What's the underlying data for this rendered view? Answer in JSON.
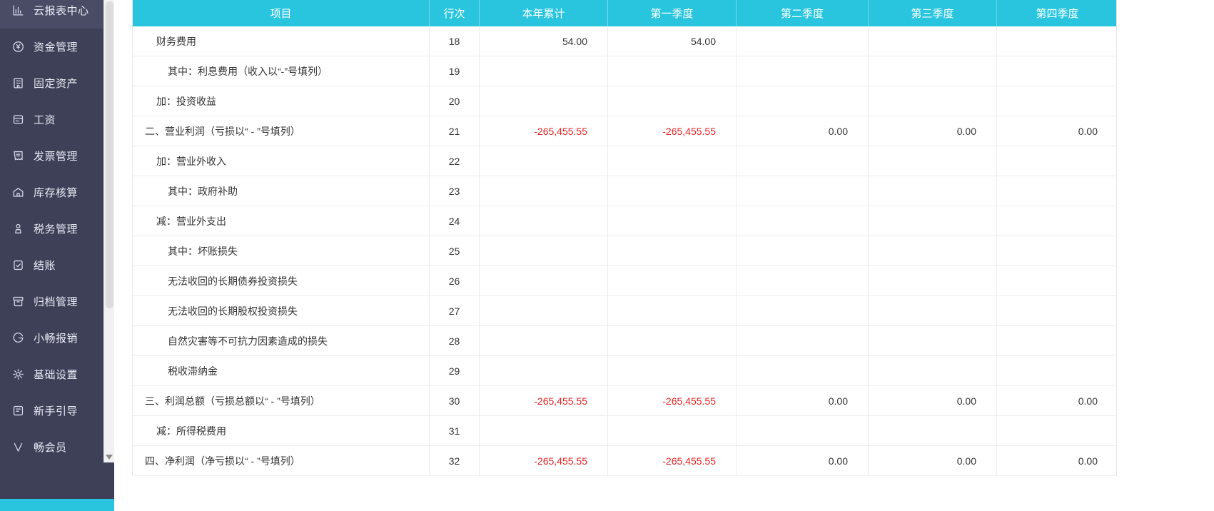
{
  "colors": {
    "accent": "#29c5df",
    "sidebar_bg": "#3e4058",
    "negative_value": "#e42222"
  },
  "sidebar": {
    "items": [
      {
        "label": "云报表中心",
        "icon": "cloud-report-icon"
      },
      {
        "label": "资金管理",
        "icon": "funds-icon"
      },
      {
        "label": "固定资产",
        "icon": "fixed-assets-icon"
      },
      {
        "label": "工资",
        "icon": "salary-icon"
      },
      {
        "label": "发票管理",
        "icon": "invoice-icon"
      },
      {
        "label": "库存核算",
        "icon": "inventory-icon"
      },
      {
        "label": "税务管理",
        "icon": "tax-icon"
      },
      {
        "label": "结账",
        "icon": "closing-icon"
      },
      {
        "label": "归档管理",
        "icon": "archive-icon"
      },
      {
        "label": "小畅报销",
        "icon": "xiaochang-icon"
      },
      {
        "label": "基础设置",
        "icon": "settings-icon"
      },
      {
        "label": "新手引导",
        "icon": "guide-icon"
      },
      {
        "label": "畅会员",
        "icon": "member-icon"
      }
    ]
  },
  "table": {
    "columns": [
      "项目",
      "行次",
      "本年累计",
      "第一季度",
      "第二季度",
      "第三季度",
      "第四季度"
    ],
    "rows": [
      {
        "item": "财务费用",
        "indent": 1,
        "line": "18",
        "values": [
          "54.00",
          "54.00",
          "",
          "",
          ""
        ]
      },
      {
        "item": "其中：利息费用（收入以“-”号填列）",
        "indent": 2,
        "line": "19",
        "values": [
          "",
          "",
          "",
          "",
          ""
        ]
      },
      {
        "item": "加：投资收益",
        "indent": 1,
        "line": "20",
        "values": [
          "",
          "",
          "",
          "",
          ""
        ]
      },
      {
        "item": "二、营业利润（亏损以“ - ”号填列）",
        "indent": 0,
        "line": "21",
        "values": [
          "-265,455.55",
          "-265,455.55",
          "0.00",
          "0.00",
          "0.00"
        ]
      },
      {
        "item": "加：营业外收入",
        "indent": 1,
        "line": "22",
        "values": [
          "",
          "",
          "",
          "",
          ""
        ]
      },
      {
        "item": "其中：政府补助",
        "indent": 2,
        "line": "23",
        "values": [
          "",
          "",
          "",
          "",
          ""
        ]
      },
      {
        "item": "减：营业外支出",
        "indent": 1,
        "line": "24",
        "values": [
          "",
          "",
          "",
          "",
          ""
        ]
      },
      {
        "item": "其中：坏账损失",
        "indent": 2,
        "line": "25",
        "values": [
          "",
          "",
          "",
          "",
          ""
        ]
      },
      {
        "item": "无法收回的长期债券投资损失",
        "indent": 2,
        "line": "26",
        "values": [
          "",
          "",
          "",
          "",
          ""
        ]
      },
      {
        "item": "无法收回的长期股权投资损失",
        "indent": 2,
        "line": "27",
        "values": [
          "",
          "",
          "",
          "",
          ""
        ]
      },
      {
        "item": "自然灾害等不可抗力因素造成的损失",
        "indent": 2,
        "line": "28",
        "values": [
          "",
          "",
          "",
          "",
          ""
        ]
      },
      {
        "item": "税收滞纳金",
        "indent": 2,
        "line": "29",
        "values": [
          "",
          "",
          "",
          "",
          ""
        ]
      },
      {
        "item": "三、利润总额（亏损总额以“ - ”号填列）",
        "indent": 0,
        "line": "30",
        "values": [
          "-265,455.55",
          "-265,455.55",
          "0.00",
          "0.00",
          "0.00"
        ]
      },
      {
        "item": "减：所得税费用",
        "indent": 1,
        "line": "31",
        "values": [
          "",
          "",
          "",
          "",
          ""
        ]
      },
      {
        "item": "四、净利润（净亏损以“ - ”号填列）",
        "indent": 0,
        "line": "32",
        "values": [
          "-265,455.55",
          "-265,455.55",
          "0.00",
          "0.00",
          "0.00"
        ]
      }
    ]
  }
}
